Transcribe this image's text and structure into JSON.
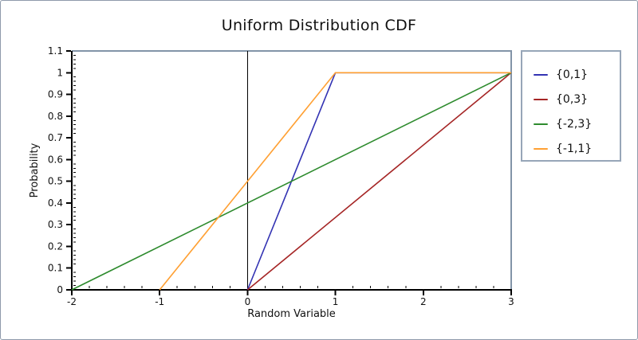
{
  "figure": {
    "title": "Uniform Distribution CDF"
  },
  "chart_data": {
    "type": "line",
    "title": "Uniform Distribution CDF",
    "xlabel": "Random Variable",
    "ylabel": "Probability",
    "xlim": [
      -2,
      3
    ],
    "ylim": [
      0,
      1.1
    ],
    "x_major_ticks": [
      -2,
      -1,
      0,
      1,
      2,
      3
    ],
    "x_tick_labels": [
      "-2",
      "-1",
      "0",
      "1",
      "2",
      "3"
    ],
    "x_minor_step": 0.2,
    "y_major_ticks": [
      0,
      0.1,
      0.2,
      0.3,
      0.4,
      0.5,
      0.6,
      0.7,
      0.8,
      0.9,
      1,
      1.1
    ],
    "y_tick_labels": [
      "0",
      "0.1",
      "0.2",
      "0.3",
      "0.4",
      "0.5",
      "0.6",
      "0.7",
      "0.8",
      "0.9",
      "1",
      "1.1"
    ],
    "y_minor_step": 0.02,
    "grid": false,
    "legend_position": "right",
    "zero_axis_at_x": 0,
    "colors": {
      "axis": "#000000",
      "plot_frame": "#8294a8",
      "text": "#111111",
      "figure_border": "#8e9aab",
      "legend_border": "#97a6b8"
    },
    "series": [
      {
        "name": "{0,1}",
        "color": "#3333b3",
        "points": [
          [
            0,
            0
          ],
          [
            1,
            1
          ],
          [
            3,
            1
          ]
        ]
      },
      {
        "name": "{0,3}",
        "color": "#a52525",
        "points": [
          [
            0,
            0
          ],
          [
            3,
            1
          ]
        ]
      },
      {
        "name": "{-2,3}",
        "color": "#2e8b2e",
        "points": [
          [
            -2,
            0
          ],
          [
            3,
            1
          ]
        ]
      },
      {
        "name": "{-1,1}",
        "color": "#ffa033",
        "points": [
          [
            -1,
            0
          ],
          [
            1,
            1
          ],
          [
            3,
            1
          ]
        ]
      }
    ]
  }
}
